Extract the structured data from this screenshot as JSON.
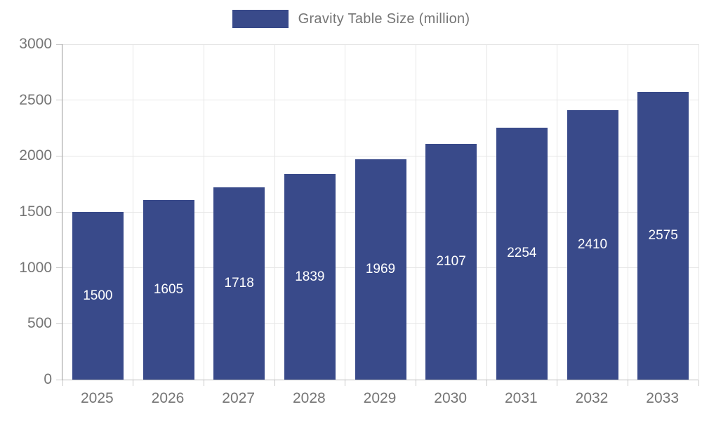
{
  "legend": {
    "label": "Gravity Table Size (million)",
    "swatch_color": "#394a8a"
  },
  "colors": {
    "bar": "#394a8a",
    "bar_label": "#ffffff",
    "axis_text": "#757575",
    "gridline": "#e6e6e6",
    "axis_line": "#979797",
    "tick": "#c9c9c9"
  },
  "chart_data": {
    "type": "bar",
    "title": "Gravity Table Size (million)",
    "categories": [
      "2025",
      "2026",
      "2027",
      "2028",
      "2029",
      "2030",
      "2031",
      "2032",
      "2033"
    ],
    "values": [
      1500,
      1605,
      1718,
      1839,
      1969,
      2107,
      2254,
      2410,
      2575
    ],
    "series_name": "Gravity Table Size (million)",
    "xlabel": "",
    "ylabel": "",
    "ylim": [
      0,
      3000
    ],
    "yticks": [
      0,
      500,
      1000,
      1500,
      2000,
      2500,
      3000
    ],
    "grid": true,
    "legend_position": "top-center",
    "bar_labels_inside": true
  }
}
